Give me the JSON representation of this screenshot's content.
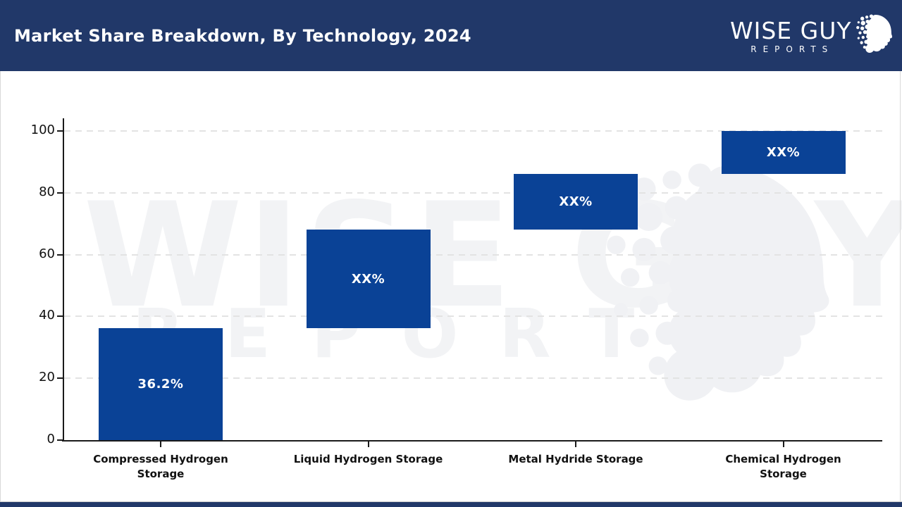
{
  "header": {
    "title": "Market Share Breakdown, By Technology, 2024",
    "brand": {
      "line1": "WISE GUY",
      "line2": "REPORTS"
    }
  },
  "watermark": {
    "line1": "WISE GUY",
    "line2": "REPORTS"
  },
  "colors": {
    "header_bg": "#213869",
    "bar": "#0a4296",
    "grid": "#e3e3e3",
    "axis": "#1a1a1a",
    "watermark": "#f2f3f5",
    "bar_label": "#ffffff"
  },
  "chart_data": {
    "type": "bar",
    "variant": "waterfall",
    "title": "Market Share Breakdown, By Technology, 2024",
    "categories": [
      "Compressed Hydrogen Storage",
      "Liquid Hydrogen Storage",
      "Metal Hydride Storage",
      "Chemical Hydrogen Storage"
    ],
    "segments": [
      {
        "category": "Compressed Hydrogen Storage",
        "start": 0,
        "end": 36.2,
        "label": "36.2%"
      },
      {
        "category": "Liquid Hydrogen Storage",
        "start": 36.2,
        "end": 68.0,
        "label": "XX%"
      },
      {
        "category": "Metal Hydride Storage",
        "start": 68.0,
        "end": 86.2,
        "label": "XX%"
      },
      {
        "category": "Chemical Hydrogen Storage",
        "start": 86.2,
        "end": 100.0,
        "label": "XX%"
      }
    ],
    "xlabel": "",
    "ylabel": "",
    "ylim": [
      0,
      100
    ],
    "yticks": [
      0,
      20,
      40,
      60,
      80,
      100
    ],
    "grid": "horizontal-dashed",
    "legend": null,
    "bar_value_labels_shown": [
      "36.2%",
      "XX%",
      "XX%",
      "XX%"
    ]
  }
}
